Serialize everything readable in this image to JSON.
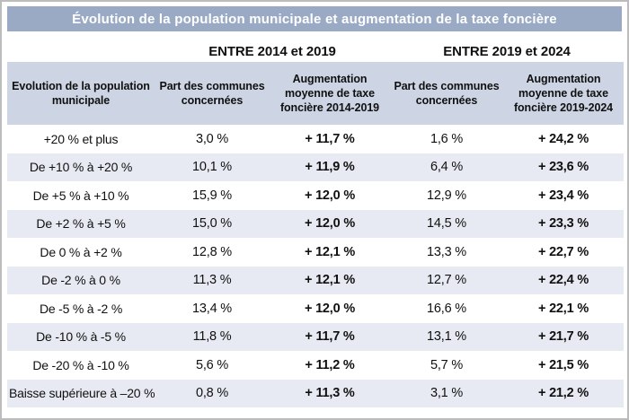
{
  "chart_data": {
    "type": "table",
    "title": "Évolution de la population municipale et augmentation de la taxe foncière",
    "column_groups": [
      "",
      "ENTRE 2014 et 2019",
      "ENTRE 2019 et 2024"
    ],
    "columns": [
      "Evolution de la population municipale",
      "Part des communes concernées",
      "Augmentation moyenne de taxe foncière 2014-2019",
      "Part des communes concernées",
      "Augmentation moyenne de taxe foncière 2019-2024"
    ],
    "rows": [
      [
        "+20 % et plus",
        "3,0 %",
        "+ 11,7 %",
        "1,6 %",
        "+ 24,2 %"
      ],
      [
        "De +10 % à +20 %",
        "10,1 %",
        "+ 11,9 %",
        "6,4 %",
        "+ 23,6 %"
      ],
      [
        "De +5 % à +10 %",
        "15,9 %",
        "+ 12,0 %",
        "12,9 %",
        "+ 23,4 %"
      ],
      [
        "De +2 % à +5 %",
        "15,0 %",
        "+ 12,0 %",
        "14,5 %",
        "+ 23,3 %"
      ],
      [
        "De 0 % à +2 %",
        "12,8 %",
        "+ 12,1 %",
        "13,3 %",
        "+ 22,7 %"
      ],
      [
        "De -2 % à 0 %",
        "11,3 %",
        "+ 12,1 %",
        "12,7 %",
        "+ 22,4 %"
      ],
      [
        "De -5 % à -2 %",
        "13,4 %",
        "+ 12,0 %",
        "16,6 %",
        "+ 22,1 %"
      ],
      [
        "De -10 % à -5 %",
        "11,8 %",
        "+ 11,7 %",
        "13,1 %",
        "+ 21,7 %"
      ],
      [
        "De -20 % à -10 %",
        "5,6 %",
        "+ 11,2 %",
        "5,7 %",
        "+ 21,5 %"
      ],
      [
        "Baisse supérieure à –20 %",
        "0,8 %",
        "+ 11,3 %",
        "3,1 %",
        "+ 21,2 %"
      ]
    ],
    "layout_hints": {
      "row_striping": "alternate rows shaded starting with second data row",
      "bold_columns": [
        2,
        4
      ],
      "grid": false,
      "legend_position": "none"
    }
  },
  "colors": {
    "title_bg": "#9aaac5",
    "title_text": "#ffffff",
    "header_bg": "#cdd5e4",
    "shaded_row_bg": "#e7eaf2",
    "frame_border": "#bcbcbc",
    "text": "#101010"
  }
}
